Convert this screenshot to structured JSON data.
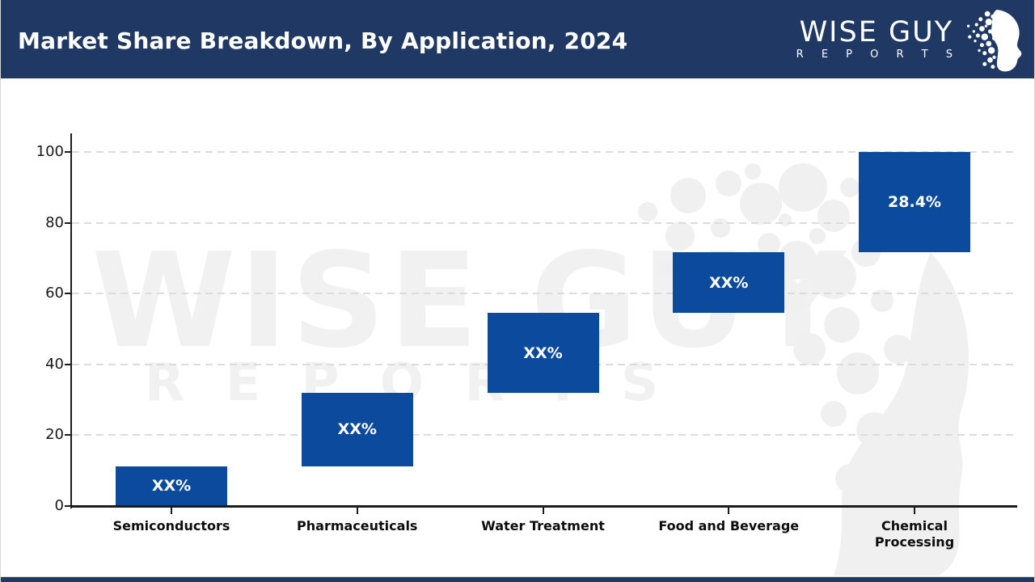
{
  "header": {
    "title": "Market Share Breakdown, By Application, 2024",
    "logo": {
      "name": "WISE GUY",
      "sub": "R E P O R T S"
    }
  },
  "watermark": {
    "line1": "WISE GUY",
    "line2": "R E P O R T S"
  },
  "colors": {
    "header_bg": "#203864",
    "footer_bg": "#203864",
    "bar": "#0c4a9e",
    "bar_label": "#ffffff",
    "axis": "#1c1c1c",
    "grid": "#dcdcdc",
    "watermark": "#f1f1f1"
  },
  "chart_data": {
    "type": "bar",
    "variant": "waterfall",
    "title": "Market Share Breakdown, By Application, 2024",
    "xlabel": "",
    "ylabel": "",
    "ylim": [
      0,
      105
    ],
    "yticks": [
      0,
      20,
      40,
      60,
      80,
      100
    ],
    "grid": {
      "horizontal": true,
      "style": "dashed"
    },
    "legend": null,
    "categories": [
      "Semiconductors",
      "Pharmaceuticals",
      "Water Treatment",
      "Food and Beverage",
      "Chemical\nProcessing"
    ],
    "segments": [
      {
        "category": "Semiconductors",
        "start": 0,
        "end": 11.2,
        "size": 11.2,
        "value_label": "XX%"
      },
      {
        "category": "Pharmaceuticals",
        "start": 11.2,
        "end": 31.8,
        "size": 20.6,
        "value_label": "XX%"
      },
      {
        "category": "Water Treatment",
        "start": 31.8,
        "end": 54.6,
        "size": 22.8,
        "value_label": "XX%"
      },
      {
        "category": "Food and Beverage",
        "start": 54.6,
        "end": 71.6,
        "size": 17.0,
        "value_label": "XX%"
      },
      {
        "category": "Chemical Processing",
        "start": 71.6,
        "end": 100,
        "size": 28.4,
        "value_label": "28.4%"
      }
    ]
  }
}
